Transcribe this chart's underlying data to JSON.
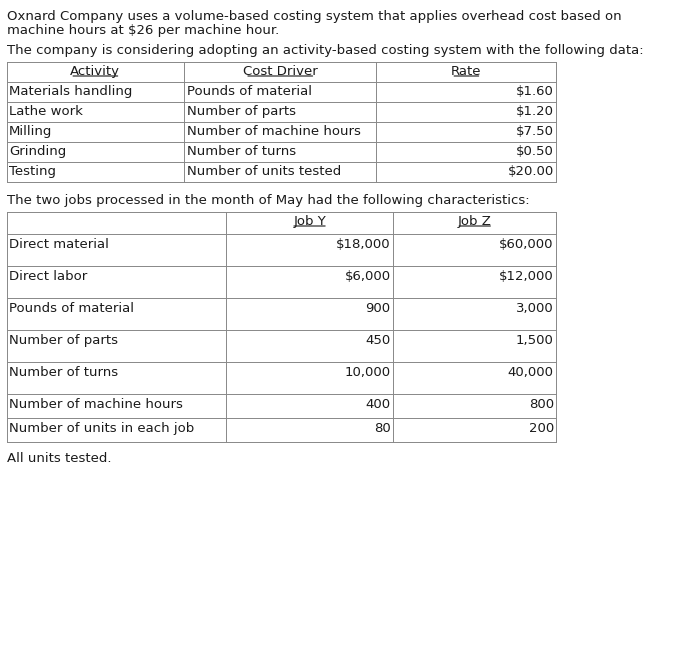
{
  "intro_text1": "Oxnard Company uses a volume-based costing system that applies overhead cost based on",
  "intro_text2": "machine hours at $26 per machine hour.",
  "intro_text3": "The company is considering adopting an activity-based costing system with the following data:",
  "table1_headers": [
    "Activity",
    "Cost Driver",
    "Rate"
  ],
  "table1_rows": [
    [
      "Materials handling",
      "Pounds of material",
      "$1.60"
    ],
    [
      "Lathe work",
      "Number of parts",
      "$1.20"
    ],
    [
      "Milling",
      "Number of machine hours",
      "$7.50"
    ],
    [
      "Grinding",
      "Number of turns",
      "$0.50"
    ],
    [
      "Testing",
      "Number of units tested",
      "$20.00"
    ]
  ],
  "mid_text": "The two jobs processed in the month of May had the following characteristics:",
  "table2_headers": [
    "",
    "Job Y",
    "Job Z"
  ],
  "table2_rows": [
    [
      "Direct material",
      "$18,000",
      "$60,000"
    ],
    [
      "Direct labor",
      "$6,000",
      "$12,000"
    ],
    [
      "Pounds of material",
      "900",
      "3,000"
    ],
    [
      "Number of parts",
      "450",
      "1,500"
    ],
    [
      "Number of turns",
      "10,000",
      "40,000"
    ],
    [
      "Number of machine hours",
      "400",
      "800"
    ],
    [
      "Number of units in each job",
      "80",
      "200"
    ]
  ],
  "footer_text": "All units tested.",
  "bg_color": "#ffffff",
  "table_border_color": "#888888",
  "text_color": "#1a1a1a",
  "font_size": 9.5
}
